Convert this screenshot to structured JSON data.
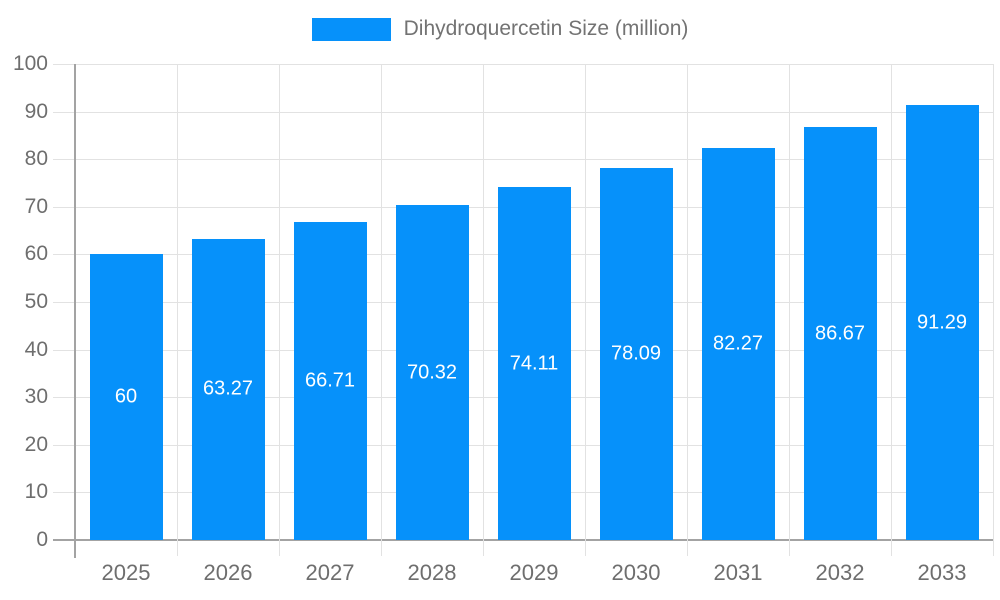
{
  "legend": {
    "label": "Dihydroquercetin Size (million)"
  },
  "colors": {
    "bar": "#0691fa",
    "grid": "#e2e2e2",
    "axis": "#a3a3a3",
    "tick_text": "#6e6e6e",
    "legend_text": "#737373",
    "value_text": "#ffffff",
    "background": "#ffffff"
  },
  "chart_data": {
    "type": "bar",
    "title": "",
    "legend": "Dihydroquercetin Size (million)",
    "categories": [
      "2025",
      "2026",
      "2027",
      "2028",
      "2029",
      "2030",
      "2031",
      "2032",
      "2033"
    ],
    "values": [
      60,
      63.27,
      66.71,
      70.32,
      74.11,
      78.09,
      82.27,
      86.67,
      91.29
    ],
    "value_labels": [
      "60",
      "63.27",
      "66.71",
      "70.32",
      "74.11",
      "78.09",
      "82.27",
      "86.67",
      "91.29"
    ],
    "xlabel": "",
    "ylabel": "",
    "ylim": [
      0,
      100
    ],
    "y_ticks": [
      0,
      10,
      20,
      30,
      40,
      50,
      60,
      70,
      80,
      90,
      100
    ],
    "grid": "on",
    "legend_position": "top"
  }
}
